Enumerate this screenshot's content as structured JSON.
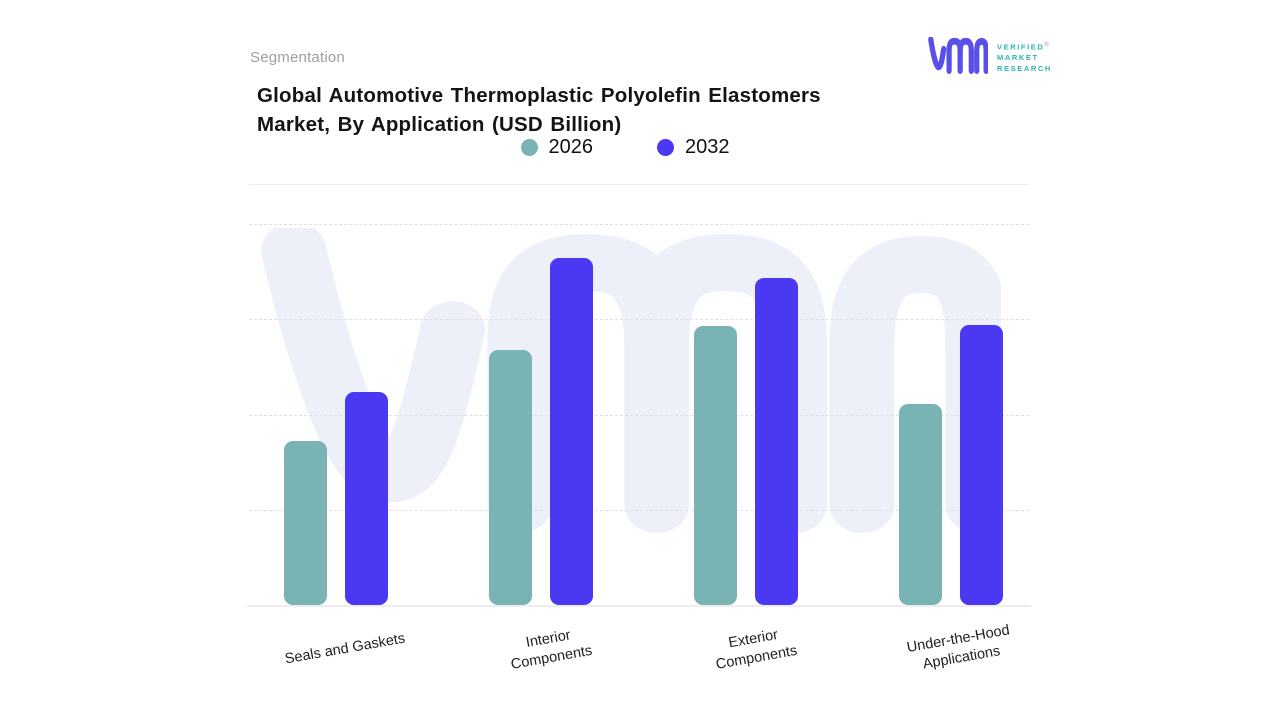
{
  "header": {
    "segmentation_label": "Segmentation",
    "title_line1": "Global Automotive Thermoplastic Polyolefin Elastomers",
    "title_line2": "Market, By Application (USD Billion)"
  },
  "logo": {
    "line1": "VERIFIED",
    "reg": "®",
    "line2": "MARKET",
    "line3": "RESEARCH",
    "glyph_color": "#5a4fe8",
    "text_color": "#2fb3ad"
  },
  "legend": {
    "items": [
      {
        "label": "2026",
        "color": "#7ab3b4"
      },
      {
        "label": "2032",
        "color": "#4b38f3"
      }
    ]
  },
  "chart_data": {
    "type": "bar",
    "title": "Global Automotive Thermoplastic Polyolefin Elastomers Market, By Application (USD Billion)",
    "categories": [
      "Seals and Gaskets",
      "Interior Components",
      "Exterior Components",
      "Under-the-Hood Applications"
    ],
    "category_lines": [
      [
        "Seals and Gaskets"
      ],
      [
        "Interior",
        "Components"
      ],
      [
        "Exterior",
        "Components"
      ],
      [
        "Under-the-Hood",
        "Applications"
      ]
    ],
    "series": [
      {
        "name": "2026",
        "color": "#7ab3b4",
        "values": [
          1.72,
          2.68,
          2.93,
          2.11
        ]
      },
      {
        "name": "2032",
        "color": "#4b38f3",
        "values": [
          2.24,
          3.64,
          3.43,
          2.94
        ]
      }
    ],
    "xlabel": "",
    "ylabel": "",
    "ylim": [
      0,
      4
    ],
    "grid": "horizontal dashed, unlabeled axis",
    "legend_position": "top"
  },
  "colors": {
    "watermark": "#eef0f9",
    "gridline": "#e0e0e4",
    "baseline": "#ededed",
    "divider": "#ececec",
    "title_text": "#141414",
    "muted_text": "#99a1a9"
  }
}
